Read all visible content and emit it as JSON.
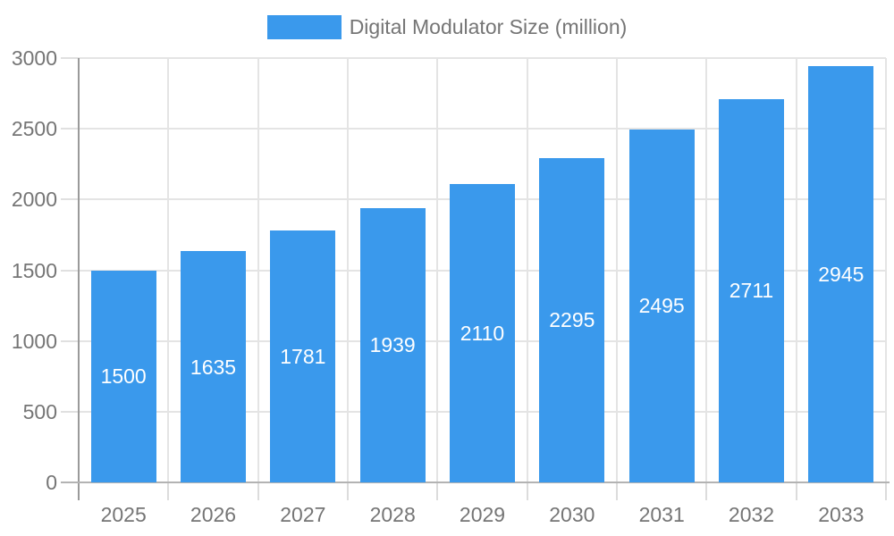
{
  "chart_data": {
    "type": "bar",
    "title": "Digital Modulator Size (million)",
    "series_name": "Digital Modulator Size (million)",
    "categories": [
      "2025",
      "2026",
      "2027",
      "2028",
      "2029",
      "2030",
      "2031",
      "2032",
      "2033"
    ],
    "values": [
      1500,
      1635,
      1781,
      1939,
      2110,
      2295,
      2495,
      2711,
      2945
    ],
    "value_labels": [
      "1500",
      "1635",
      "1781",
      "1939",
      "2110",
      "2295",
      "2495",
      "2711",
      "2945"
    ],
    "xlabel": "",
    "ylabel": "",
    "ylim": [
      0,
      3000
    ],
    "yticks": [
      0,
      500,
      1000,
      1500,
      2000,
      2500,
      3000
    ],
    "grid": true,
    "legend_position": "top-center",
    "value_labels_inside_bars": true,
    "colors": {
      "bar": "#3A99EC",
      "value_label": "#ffffff",
      "axis_text": "#757575",
      "gridline": "#e4e4e4",
      "x_axis_line": "#b3b3b3",
      "y_axis_line": "#9a9a9a",
      "background": "#ffffff"
    }
  }
}
